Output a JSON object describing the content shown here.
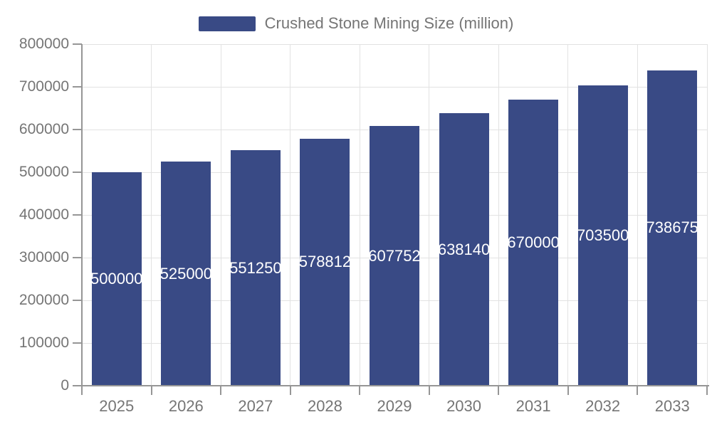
{
  "legend": {
    "label": "Crushed Stone Mining Size (million)"
  },
  "colors": {
    "bar": "#394a85",
    "axis_line": "#969696",
    "grid_line": "#e2e2e2",
    "axis_text": "#757575",
    "bar_label_text": "#ffffff",
    "background": "#ffffff"
  },
  "chart_data": {
    "type": "bar",
    "title": "Crushed Stone Mining Size (million)",
    "series_name": "Crushed Stone Mining Size (million)",
    "categories": [
      "2025",
      "2026",
      "2027",
      "2028",
      "2029",
      "2030",
      "2031",
      "2032",
      "2033"
    ],
    "values": [
      500000,
      525000,
      551250,
      578812,
      607752,
      638140,
      670000,
      703500,
      738675
    ],
    "value_labels": [
      "500000",
      "525000",
      "551250",
      "578812",
      "607752",
      "638140",
      "670000",
      "703500",
      "738675"
    ],
    "xlabel": "",
    "ylabel": "",
    "ylim": [
      0,
      800000
    ],
    "yticks": [
      0,
      100000,
      200000,
      300000,
      400000,
      500000,
      600000,
      700000,
      800000
    ],
    "ytick_labels": [
      "0",
      "100000",
      "200000",
      "300000",
      "400000",
      "500000",
      "600000",
      "700000",
      "800000"
    ],
    "grid": true,
    "legend_position": "top-center",
    "bar_labels_visible": true,
    "bar_label_position": "inside-middle"
  }
}
